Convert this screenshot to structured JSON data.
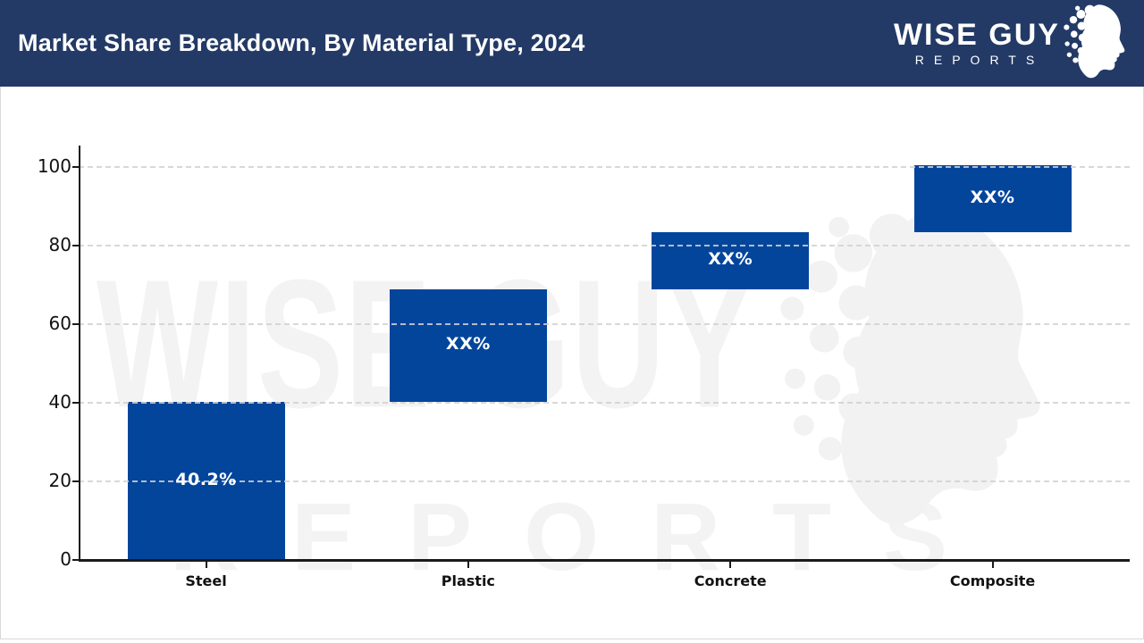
{
  "header": {
    "title": "Market Share Breakdown, By Material Type, 2024",
    "logo": {
      "line1": "WISE GUY",
      "line2": "REPORTS"
    }
  },
  "watermark": {
    "line1": "WISE GUY",
    "line2": "REPORTS"
  },
  "colors": {
    "header_bg": "#233a66",
    "bar": "#04459c",
    "grid": "#d2d2d2",
    "axis": "#1a1a1a",
    "bar_label": "#ffffff",
    "watermark": "#f3f3f3"
  },
  "chart_data": {
    "type": "bar",
    "subtype": "waterfall",
    "title": "Market Share Breakdown, By Material Type, 2024",
    "categories": [
      "Steel",
      "Plastic",
      "Concrete",
      "Composite"
    ],
    "segments": [
      {
        "category": "Steel",
        "start": 0,
        "end": 40.2,
        "label": "40.2%"
      },
      {
        "category": "Plastic",
        "start": 40.2,
        "end": 68.8,
        "label": "XX%"
      },
      {
        "category": "Concrete",
        "start": 68.8,
        "end": 83.4,
        "label": "XX%"
      },
      {
        "category": "Composite",
        "start": 83.4,
        "end": 100.4,
        "label": "XX%"
      }
    ],
    "xlabel": "",
    "ylabel": "",
    "ylim": [
      0,
      105
    ],
    "yticks": [
      0,
      20,
      40,
      60,
      80,
      100
    ],
    "grid": "dashed-horizontal",
    "legend": "none",
    "bar_color": "#04459c"
  }
}
